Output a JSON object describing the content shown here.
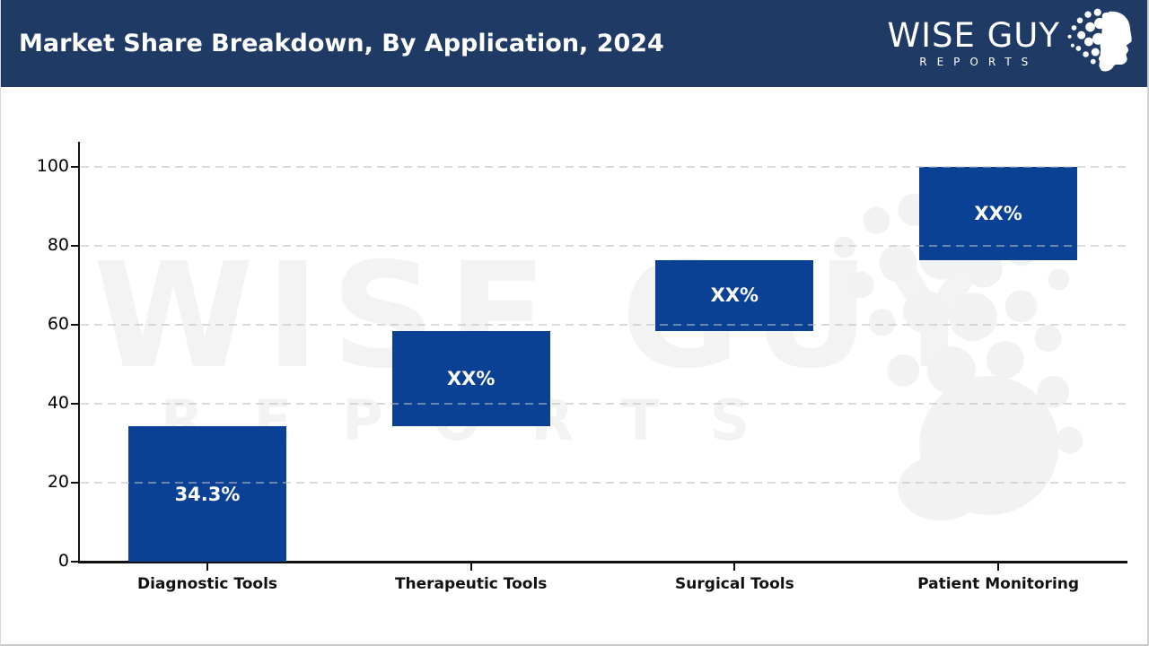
{
  "header": {
    "title": "Market Share Breakdown, By Application, 2024",
    "bg_color": "#1f3a64",
    "logo": {
      "line1": "WISE GUY",
      "line2": "REPORTS"
    }
  },
  "watermark": {
    "line1": "WISE GUY",
    "line2": "REPORTS"
  },
  "chart_data": {
    "type": "bar",
    "subtype": "waterfall",
    "title": "Market Share Breakdown, By Application, 2024",
    "categories": [
      "Diagnostic Tools",
      "Therapeutic Tools",
      "Surgical Tools",
      "Patient Monitoring"
    ],
    "series": [
      {
        "name": "Market Share",
        "unit": "%",
        "segments": [
          {
            "category": "Diagnostic Tools",
            "start": 0,
            "end": 34.3,
            "value": 34.3,
            "label": "34.3%"
          },
          {
            "category": "Therapeutic Tools",
            "start": 34.3,
            "end": 58.4,
            "value": 24.1,
            "label": "XX%"
          },
          {
            "category": "Surgical Tools",
            "start": 58.4,
            "end": 76.4,
            "value": 18.0,
            "label": "XX%"
          },
          {
            "category": "Patient Monitoring",
            "start": 76.4,
            "end": 100,
            "value": 23.6,
            "label": "XX%"
          }
        ]
      }
    ],
    "xlabel": "",
    "ylabel": "",
    "ylim": [
      0,
      106
    ],
    "yticks": [
      0,
      20,
      40,
      60,
      80,
      100
    ],
    "grid": {
      "axis": "y",
      "style": "dashed",
      "color": "#d9d9d9",
      "drawn_over_bars": true
    },
    "legend": "none",
    "bar_color": "#0a4195",
    "bar_label_color": "#ffffff"
  }
}
